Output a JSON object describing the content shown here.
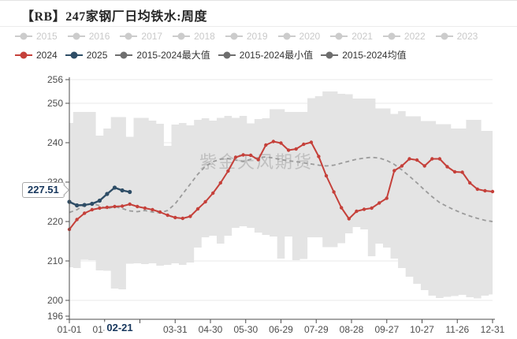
{
  "title": "【RB】247家钢厂日均铁水:周度",
  "watermark": "紫金天风期货",
  "badge_value": "227.51",
  "highlight_tick": "02-21",
  "colors": {
    "red_2024": "#c5403a",
    "navy_2025": "#2e4d66",
    "band_fill": "#e4e4e4",
    "mean_dash": "#9b9b9b",
    "disabled_legend": "#c9c9c9",
    "gray_legend_marker": "#6e6e6e",
    "axis_line": "#4d4d4d",
    "axis_text": "#4d4d4d",
    "grid_line": "#e8e8e8",
    "highlight_text": "#16365c"
  },
  "legend": {
    "rows": [
      {
        "key": "disabled-years",
        "items": [
          {
            "key": "2015",
            "label": "2015",
            "color": "#cccccc"
          },
          {
            "key": "2016",
            "label": "2016",
            "color": "#cccccc"
          },
          {
            "key": "2017",
            "label": "2017",
            "color": "#cccccc"
          },
          {
            "key": "2018",
            "label": "2018",
            "color": "#cccccc"
          },
          {
            "key": "2019",
            "label": "2019",
            "color": "#cccccc"
          },
          {
            "key": "2020",
            "label": "2020",
            "color": "#cccccc"
          },
          {
            "key": "2021",
            "label": "2021",
            "color": "#cccccc"
          },
          {
            "key": "2022",
            "label": "2022",
            "color": "#cccccc"
          },
          {
            "key": "2023",
            "label": "2023",
            "color": "#cccccc"
          }
        ]
      },
      {
        "key": "active-series",
        "items": [
          {
            "key": "2024",
            "label": "2024",
            "color": "#c5403a"
          },
          {
            "key": "2025",
            "label": "2025",
            "color": "#2e4d66"
          },
          {
            "key": "max",
            "label": "2015-2024最大值",
            "color": "#6e6e6e"
          },
          {
            "key": "min",
            "label": "2015-2024最小值",
            "color": "#6e6e6e"
          },
          {
            "key": "mean",
            "label": "2015-2024均值",
            "color": "#6e6e6e"
          }
        ]
      }
    ]
  },
  "chart_data": {
    "type": "line",
    "title": "【RB】247家钢厂日均铁水:周度",
    "xlabel": "",
    "ylabel": "",
    "ylim": [
      196,
      256
    ],
    "y_ticks": [
      256,
      250,
      240,
      230,
      220,
      210,
      200,
      196
    ],
    "grid_values": [
      256,
      250,
      240,
      230,
      220,
      210,
      200
    ],
    "x_tick_labels": [
      "01-01",
      "01-31",
      "",
      "03-31",
      "04-30",
      "05-30",
      "06-29",
      "07-29",
      "08-28",
      "09-27",
      "10-27",
      "11-26",
      "12-31"
    ],
    "legend_position": "top",
    "series": [
      {
        "key": "band",
        "name": "2015-2024最大值/最小值",
        "type": "band",
        "color": "#e4e4e4",
        "max": [
          245.0,
          247.8,
          247.8,
          247.8,
          241.8,
          243.6,
          246.5,
          246.5,
          241.5,
          246.3,
          246.3,
          245.6,
          244.8,
          239.2,
          244.6,
          245.0,
          244.4,
          245.8,
          246.2,
          245.6,
          246.3,
          246.8,
          246.3,
          246.8,
          244.9,
          246.0,
          246.2,
          248.5,
          248.5,
          247.8,
          247.8,
          247.8,
          251.3,
          251.8,
          253.0,
          253.0,
          252.4,
          252.3,
          251.2,
          251.2,
          251.2,
          248.7,
          248.7,
          247.3,
          248.0,
          246.7,
          246.7,
          245.5,
          245.5,
          244.7,
          244.7,
          243.6,
          243.6,
          245.8,
          245.8,
          243.0,
          243.0
        ],
        "min": [
          208.4,
          208.2,
          210.3,
          210.2,
          207.6,
          207.5,
          203.0,
          202.8,
          209.3,
          209.4,
          209.2,
          209.4,
          208.8,
          209.0,
          209.4,
          209.0,
          209.6,
          213.4,
          216.0,
          216.4,
          214.4,
          216.4,
          218.4,
          218.8,
          218.4,
          217.2,
          216.6,
          216.2,
          210.6,
          216.2,
          210.2,
          210.5,
          216.0,
          216.0,
          213.5,
          213.5,
          214.5,
          217.0,
          218.6,
          218.0,
          211.2,
          214.4,
          213.4,
          210.6,
          208.2,
          206.0,
          204.2,
          202.6,
          201.2,
          200.6,
          200.9,
          201.1,
          201.4,
          200.8,
          200.5,
          201.2,
          201.5
        ]
      },
      {
        "key": "mean",
        "name": "2015-2024均值",
        "type": "line-dashed",
        "color": "#9b9b9b",
        "values": [
          222.3,
          223.0,
          224.2,
          224.6,
          224.0,
          223.2,
          223.8,
          223.3,
          222.7,
          222.5,
          222.8,
          222.4,
          222.2,
          222.8,
          224.5,
          227.0,
          229.5,
          232.0,
          234.0,
          235.2,
          235.8,
          236.0,
          235.6,
          235.2,
          235.8,
          236.2,
          236.4,
          236.1,
          235.7,
          235.4,
          235.2,
          234.9,
          234.6,
          234.3,
          234.1,
          234.3,
          234.8,
          235.3,
          235.8,
          236.1,
          236.3,
          236.1,
          235.5,
          234.5,
          233.1,
          231.5,
          229.8,
          228.0,
          226.3,
          224.8,
          223.8,
          222.9,
          222.1,
          221.4,
          220.8,
          220.3,
          220.0
        ]
      },
      {
        "key": "y2024",
        "name": "2024",
        "type": "line",
        "color": "#c5403a",
        "values": [
          218.0,
          220.5,
          222.1,
          223.0,
          223.4,
          223.6,
          223.8,
          223.9,
          224.4,
          223.8,
          223.4,
          223.0,
          222.4,
          221.6,
          221.0,
          220.8,
          221.3,
          223.2,
          225.0,
          227.2,
          229.8,
          232.8,
          236.3,
          236.9,
          236.8,
          235.7,
          239.4,
          240.3,
          239.9,
          238.1,
          238.4,
          239.6,
          240.1,
          236.5,
          231.6,
          227.5,
          223.5,
          220.7,
          222.6,
          223.1,
          223.4,
          224.7,
          225.9,
          232.9,
          234.1,
          235.9,
          235.6,
          234.1,
          235.9,
          235.9,
          233.9,
          232.6,
          232.5,
          229.8,
          228.2,
          227.8,
          227.6
        ]
      },
      {
        "key": "y2025",
        "name": "2025",
        "type": "line",
        "color": "#2e4d66",
        "values": [
          225.0,
          224.1,
          224.2,
          224.5,
          225.3,
          227.0,
          228.6,
          227.9,
          227.51
        ],
        "latest_value_label": "227.51",
        "latest_date": "02-21"
      }
    ]
  }
}
